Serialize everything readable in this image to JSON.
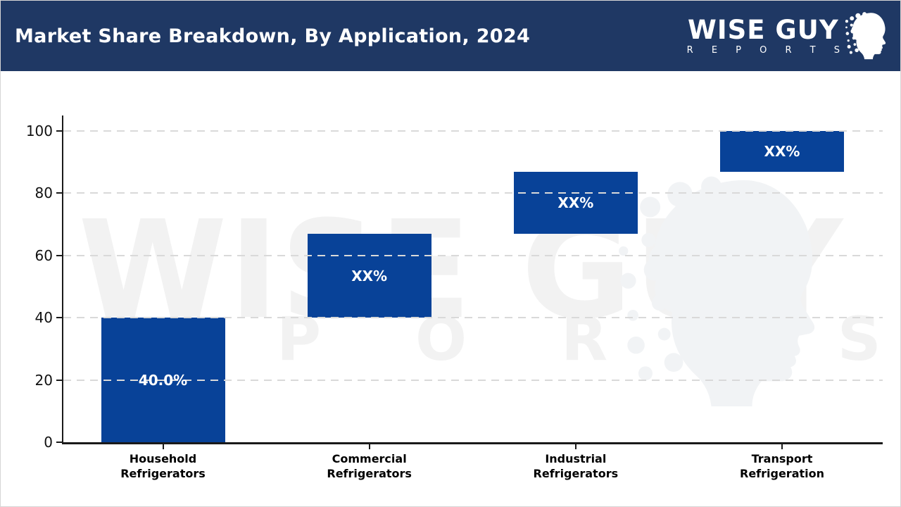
{
  "header": {
    "title": "Market Share Breakdown, By Application, 2024",
    "bg_color": "#1f3864",
    "logo": {
      "line1": "WISE GUY",
      "line2": "R E P O R T S"
    }
  },
  "watermark": {
    "line1": "WISE GUY",
    "line2": "P O R T S"
  },
  "chart_data": {
    "type": "bar",
    "subtype": "waterfall",
    "title": "Market Share Breakdown, By Application, 2024",
    "categories": [
      "Household Refrigerators",
      "Commercial Refrigerators",
      "Industrial Refrigerators",
      "Transport Refrigeration"
    ],
    "segments": [
      {
        "category": "Household Refrigerators",
        "start": 0,
        "end": 40,
        "label": "40.0%"
      },
      {
        "category": "Commercial Refrigerators",
        "start": 40,
        "end": 66.9,
        "label": "XX%"
      },
      {
        "category": "Industrial Refrigerators",
        "start": 66.9,
        "end": 86.9,
        "label": "XX%"
      },
      {
        "category": "Transport Refrigeration",
        "start": 86.9,
        "end": 100,
        "label": "XX%"
      }
    ],
    "yticks": [
      0,
      20,
      40,
      60,
      80,
      100
    ],
    "ylim": [
      0,
      105
    ],
    "xlabel": "",
    "ylabel": "",
    "grid": "horizontal-dashed",
    "legend": "none",
    "bar_color": "#084298",
    "bar_label_color": "#ffffff",
    "gridline_color": "#d9d9d9",
    "axis_color": "#1a1a1a"
  }
}
